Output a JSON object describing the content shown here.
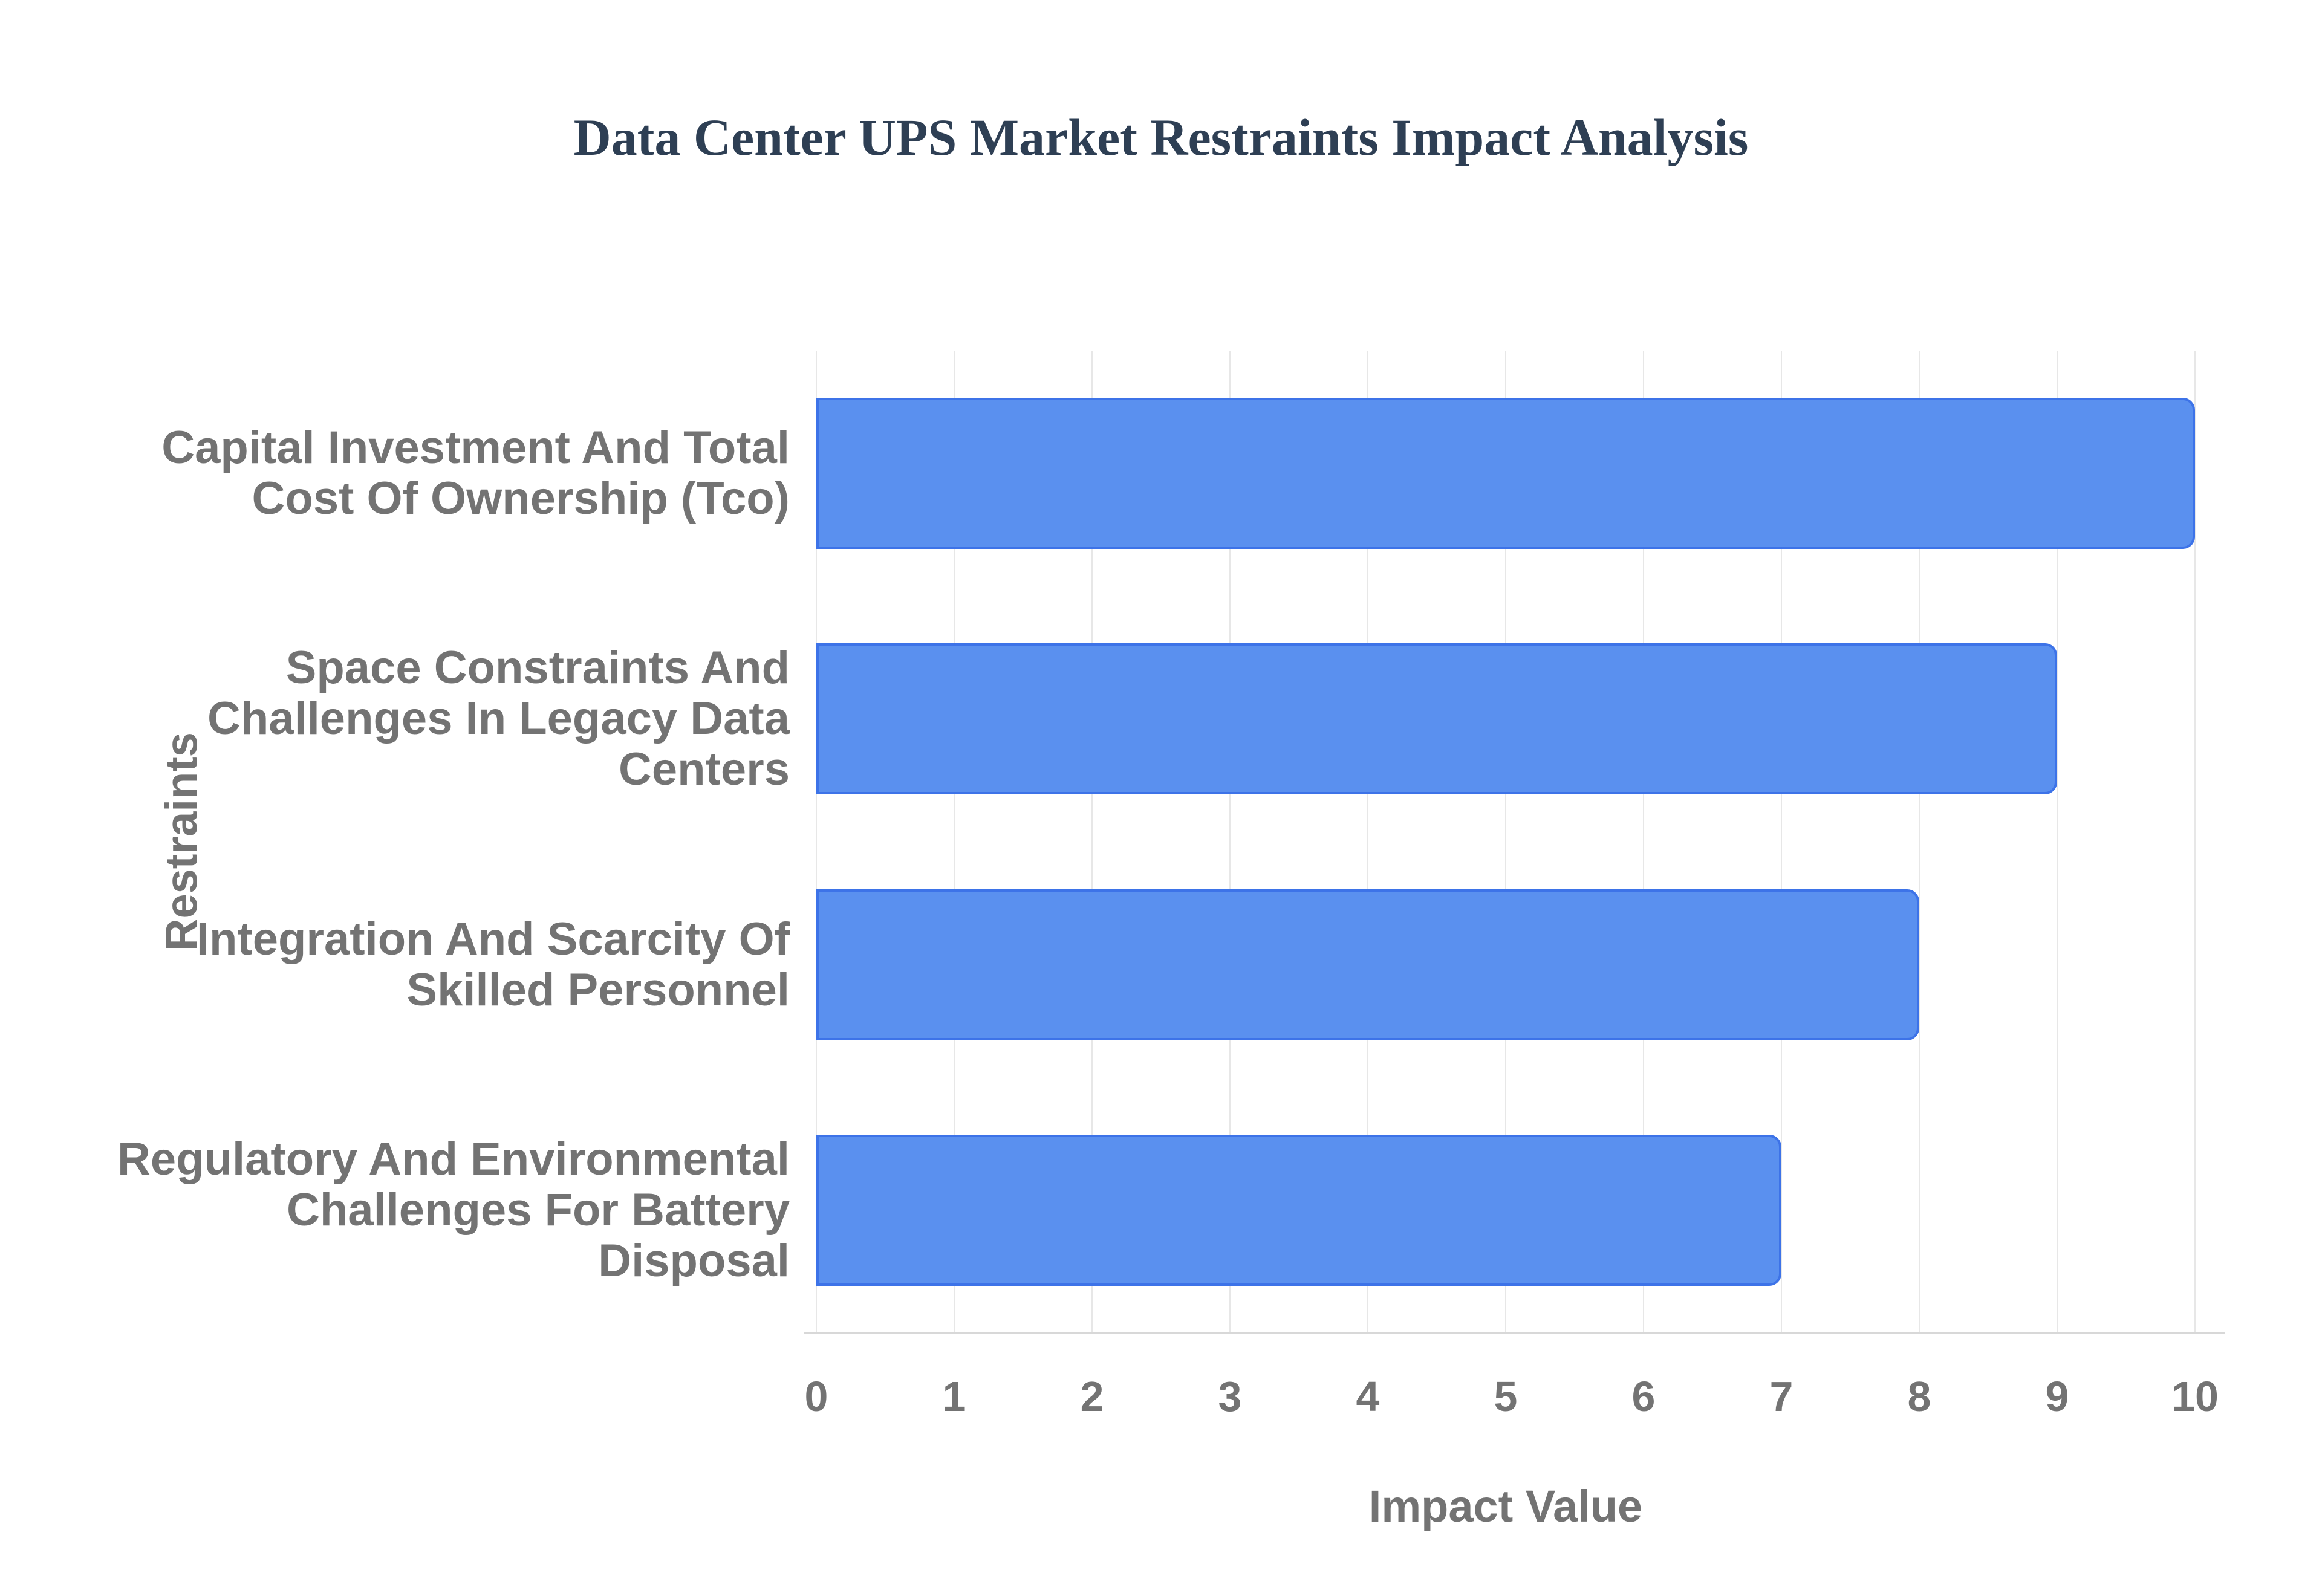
{
  "page": {
    "background": "#ffffff"
  },
  "chart_data": {
    "type": "bar",
    "orientation": "horizontal",
    "title": "Data Center UPS Market Restraints Impact Analysis",
    "xlabel": "Impact Value",
    "ylabel": "Restraints",
    "categories": [
      "Capital Investment And Total Cost Of Ownership (Tco)",
      "Space Constraints And Challenges In Legacy Data Centers",
      "Integration And Scarcity Of Skilled Personnel",
      "Regulatory And Environmental Challenges For Battery Disposal"
    ],
    "category_lines": [
      [
        "Capital Investment And Total",
        "Cost Of Ownership (Tco)"
      ],
      [
        "Space Constraints And",
        "Challenges In Legacy Data",
        "Centers"
      ],
      [
        "Integration And Scarcity Of",
        "Skilled Personnel"
      ],
      [
        "Regulatory And Environmental",
        "Challenges For Battery",
        "Disposal"
      ]
    ],
    "values": [
      10,
      9,
      8,
      7
    ],
    "xlim": [
      0,
      10
    ],
    "xticks": [
      0,
      1,
      2,
      3,
      4,
      5,
      6,
      7,
      8,
      9,
      10
    ],
    "grid": "vertical",
    "legend": "none",
    "colors": {
      "bar_fill": "#5a90ef",
      "bar_border": "#3d73e8",
      "title_text": "#2e3f54",
      "label_text": "#737373",
      "gridline": "#e7e7e7",
      "axis_line": "#d8d8d8",
      "background": "#ffffff"
    }
  }
}
